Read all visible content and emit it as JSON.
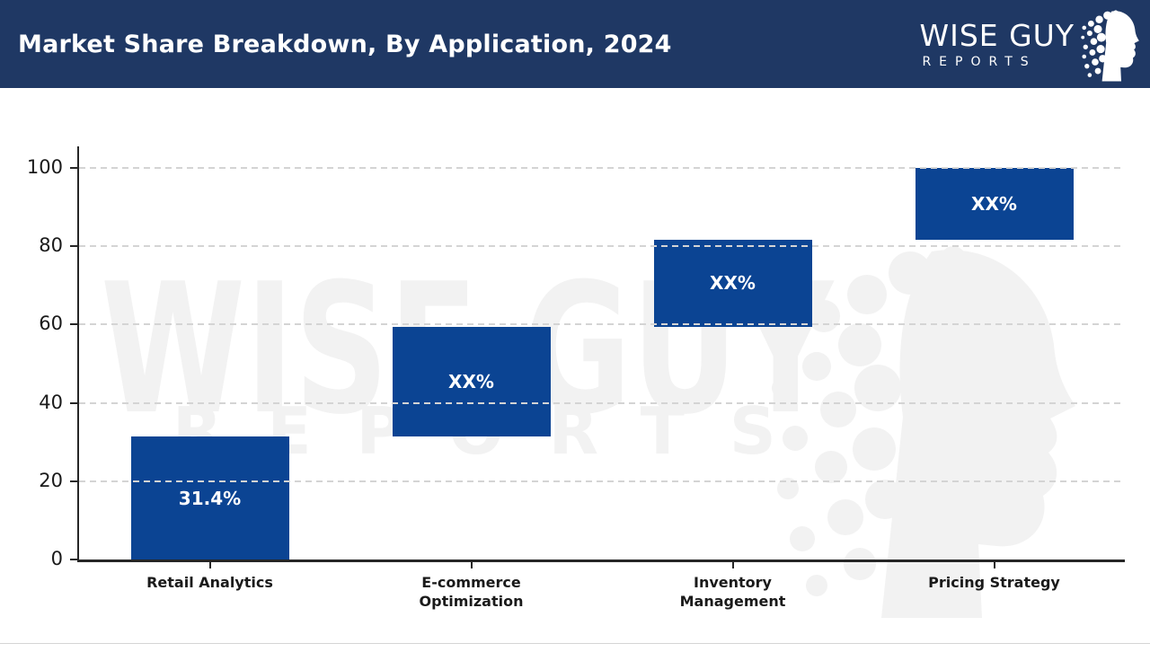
{
  "header": {
    "title": "Market Share Breakdown, By Application, 2024",
    "logo": {
      "name": "WISE GUY",
      "sub": "REPORTS"
    }
  },
  "watermark": {
    "line1": "WISE GUY",
    "line2": "REPORTS"
  },
  "chart_data": {
    "type": "bar",
    "variant": "waterfall",
    "title": "Market Share Breakdown, By Application, 2024",
    "categories": [
      {
        "label": "Retail Analytics",
        "lines": [
          "Retail Analytics"
        ]
      },
      {
        "label": "E-commerce Optimization",
        "lines": [
          "E-commerce",
          "Optimization"
        ]
      },
      {
        "label": "Inventory Management",
        "lines": [
          "Inventory",
          "Management"
        ]
      },
      {
        "label": "Pricing Strategy",
        "lines": [
          "Pricing Strategy"
        ]
      }
    ],
    "segments": [
      {
        "category": "Retail Analytics",
        "start": 0,
        "end": 31.4,
        "value": 31.4,
        "value_label": "31.4%"
      },
      {
        "category": "E-commerce Optimization",
        "start": 31.4,
        "end": 59.4,
        "value": 28.0,
        "value_label": "XX%"
      },
      {
        "category": "Inventory Management",
        "start": 59.4,
        "end": 81.7,
        "value": 22.3,
        "value_label": "XX%"
      },
      {
        "category": "Pricing Strategy",
        "start": 81.7,
        "end": 100,
        "value": 18.3,
        "value_label": "XX%"
      }
    ],
    "y_ticks": [
      0,
      20,
      40,
      60,
      80,
      100
    ],
    "ylim": [
      0,
      105
    ],
    "xlabel": "",
    "ylabel": "",
    "grid": "dashed-horizontal",
    "legend": "none",
    "colors": {
      "bar": "#0b4493",
      "axis": "#262626",
      "grid": "#d4d4d4",
      "bar_label_text": "#ffffff",
      "tick_text": "#1a1a1a",
      "header_bg": "#1f3864",
      "header_text": "#ffffff",
      "watermark": "#f2f2f2"
    }
  }
}
